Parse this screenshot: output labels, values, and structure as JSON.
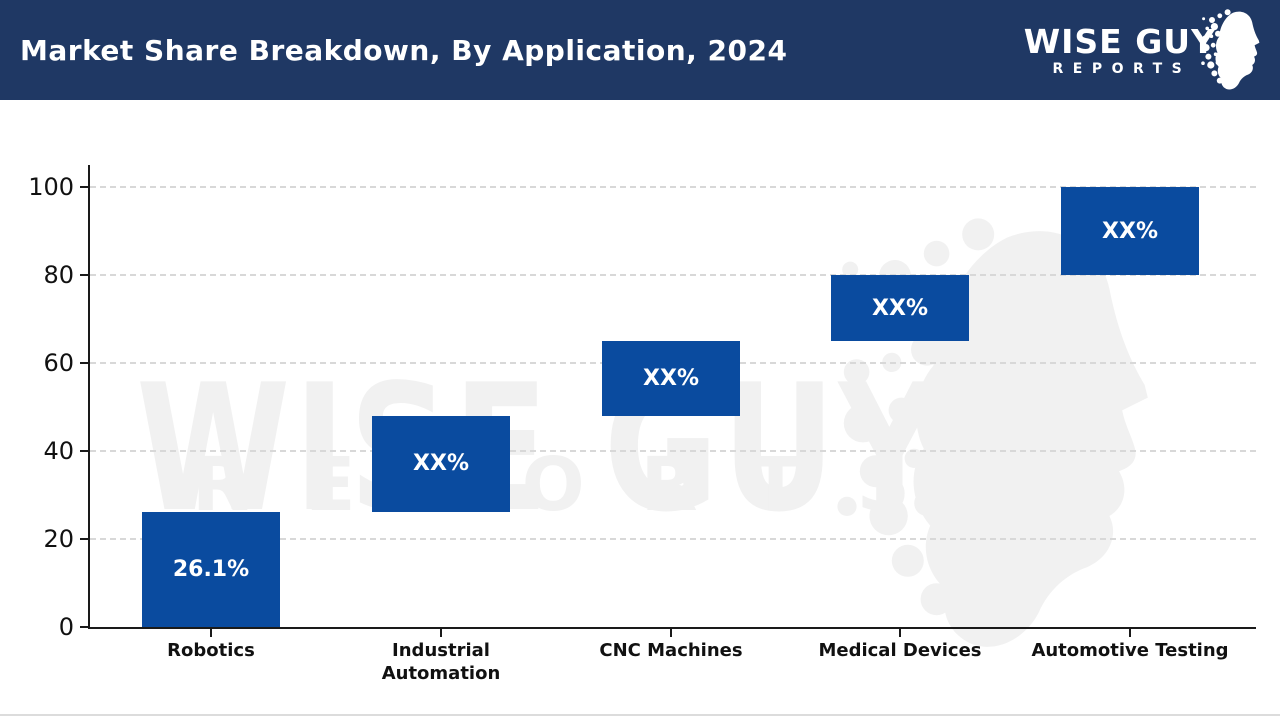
{
  "header": {
    "title": "Market Share Breakdown, By Application, 2024",
    "logo": {
      "line1": "WISE GUY",
      "line2": "REPORTS"
    }
  },
  "watermark": {
    "line1": "WISE GUY",
    "line2": "REPORTS"
  },
  "icons": {
    "logo_face": "dotted-head-profile",
    "watermark_face": "dotted-head-profile"
  },
  "colors": {
    "header_bg": "#1f3864",
    "bar": "#0a4b9f",
    "watermark": "#f1f1f1",
    "grid": "#d8d8d8",
    "axis": "#1a1a1a",
    "bar_label_text": "#ffffff",
    "tick_label_text": "#111111"
  },
  "chart_data": {
    "type": "bar",
    "subtype": "waterfall",
    "title": "Market Share Breakdown, By Application, 2024",
    "categories": [
      "Robotics",
      "Industrial\nAutomation",
      "CNC Machines",
      "Medical Devices",
      "Automotive Testing"
    ],
    "segments": [
      {
        "start": 0,
        "end": 26.1,
        "label": "26.1%"
      },
      {
        "start": 26.1,
        "end": 48,
        "label": "XX%"
      },
      {
        "start": 48,
        "end": 65,
        "label": "XX%"
      },
      {
        "start": 65,
        "end": 80,
        "label": "XX%"
      },
      {
        "start": 80,
        "end": 100,
        "label": "XX%"
      }
    ],
    "yticks": [
      0,
      20,
      40,
      60,
      80,
      100
    ],
    "ylim": [
      0,
      105
    ],
    "xlabel": "",
    "ylabel": "",
    "grid": "horizontal-dashed",
    "legend": "none",
    "bar_color": "#0a4b9f"
  }
}
